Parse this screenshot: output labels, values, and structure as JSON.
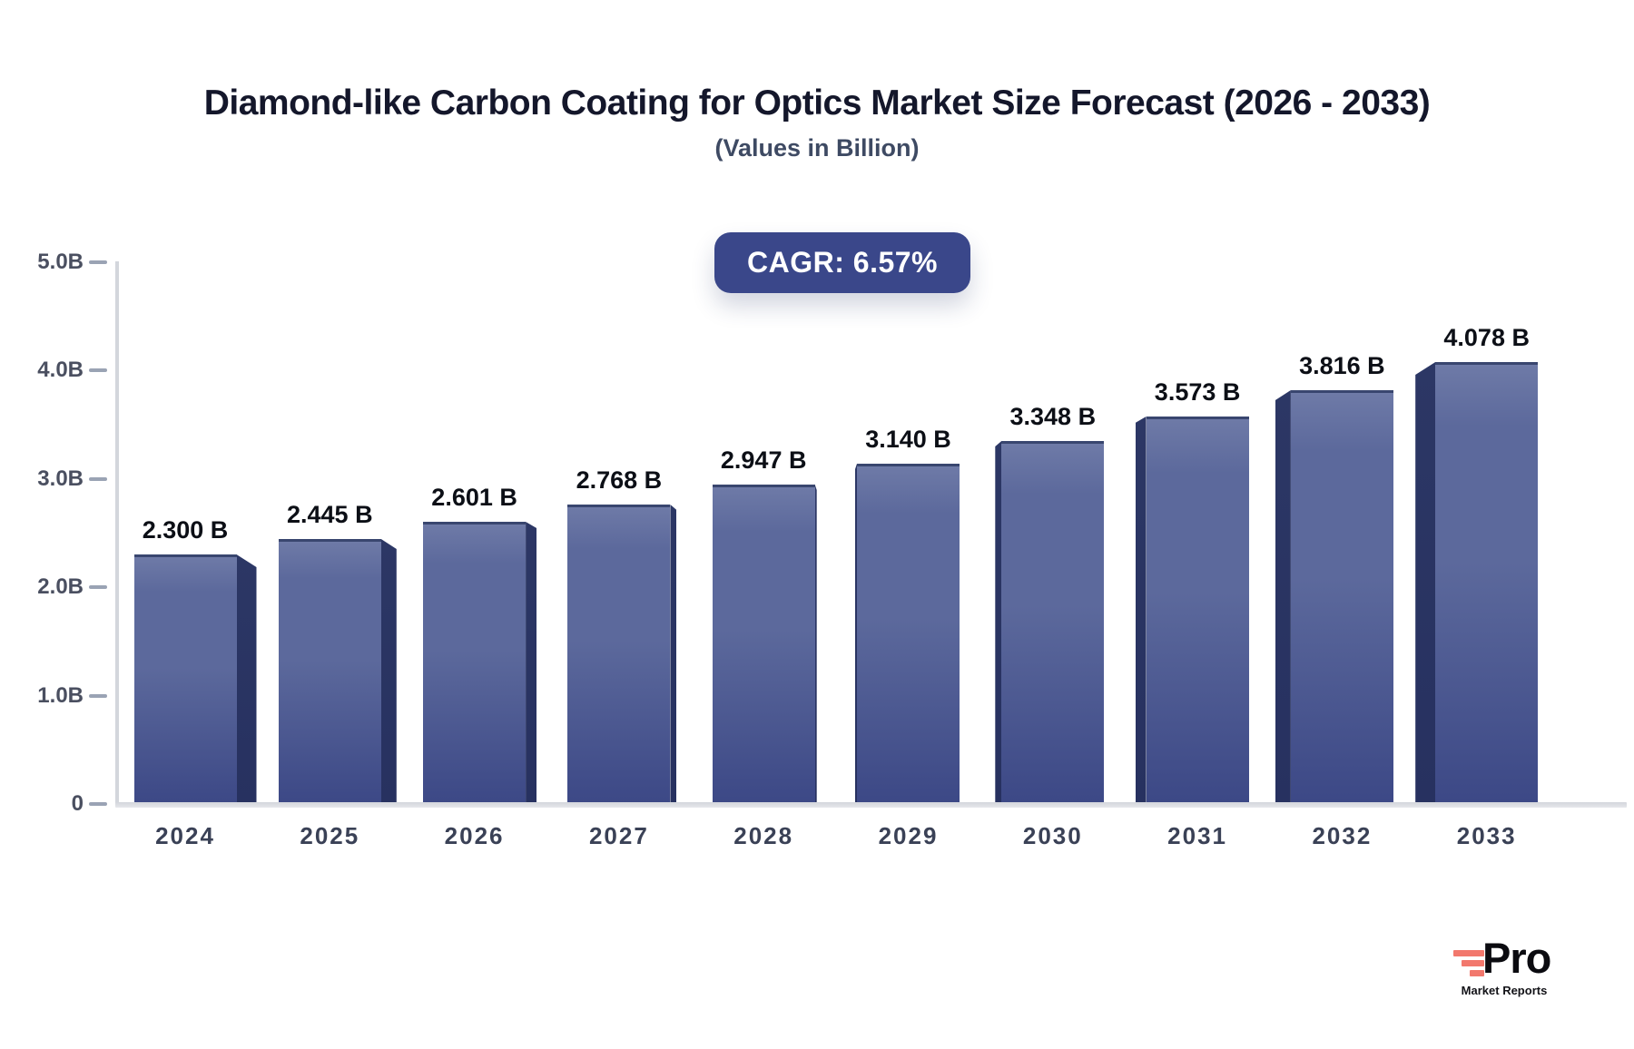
{
  "header": {
    "title": "Diamond-like Carbon Coating for Optics Market Size Forecast (2026 - 2033)",
    "subtitle": "(Values in Billion)",
    "cagr_badge": "CAGR: 6.57%"
  },
  "chart_data": {
    "type": "bar",
    "title": "Diamond-like Carbon Coating for Optics Market Size Forecast (2026 - 2033)",
    "subtitle": "(Values in Billion)",
    "cagr": "6.57%",
    "categories": [
      "2024",
      "2025",
      "2026",
      "2027",
      "2028",
      "2029",
      "2030",
      "2031",
      "2032",
      "2033"
    ],
    "values": [
      2.3,
      2.445,
      2.601,
      2.768,
      2.947,
      3.14,
      3.348,
      3.573,
      3.816,
      4.078
    ],
    "value_labels": [
      "2.300 B",
      "2.445 B",
      "2.601 B",
      "2.768 B",
      "2.947 B",
      "3.140 B",
      "3.348 B",
      "3.573 B",
      "3.816 B",
      "4.078 B"
    ],
    "xlabel": "",
    "ylabel": "",
    "ylim": [
      0,
      5
    ],
    "y_ticks": [
      {
        "label": "5.0B",
        "value": 5.0
      },
      {
        "label": "4.0B",
        "value": 4.0
      },
      {
        "label": "3.0B",
        "value": 3.0
      },
      {
        "label": "2.0B",
        "value": 2.0
      },
      {
        "label": "1.0B",
        "value": 1.0
      },
      {
        "label": "0",
        "value": 0.0
      }
    ],
    "grid": false,
    "legend": false,
    "bar_style": "3d-perspective",
    "colors": {
      "bar_face_top": "#6e7aa7",
      "bar_face_mid": "#5c699c",
      "bar_face_bottom": "#3c4886",
      "bar_side": "#2c3765",
      "bar_side_dark": "#273160",
      "axis_line": "#d3d6dc",
      "axis_line_light": "#e6e7eb",
      "tick_dash": "#9aa3b4",
      "y_label": "#4a4f60",
      "x_label": "#3a4156",
      "value_label": "#0c0f16",
      "badge_bg": "#3a478a",
      "badge_text": "#ffffff"
    }
  },
  "logo": {
    "name": "Pro",
    "sub": "Market Reports",
    "stripe_color": "#f2786d"
  }
}
